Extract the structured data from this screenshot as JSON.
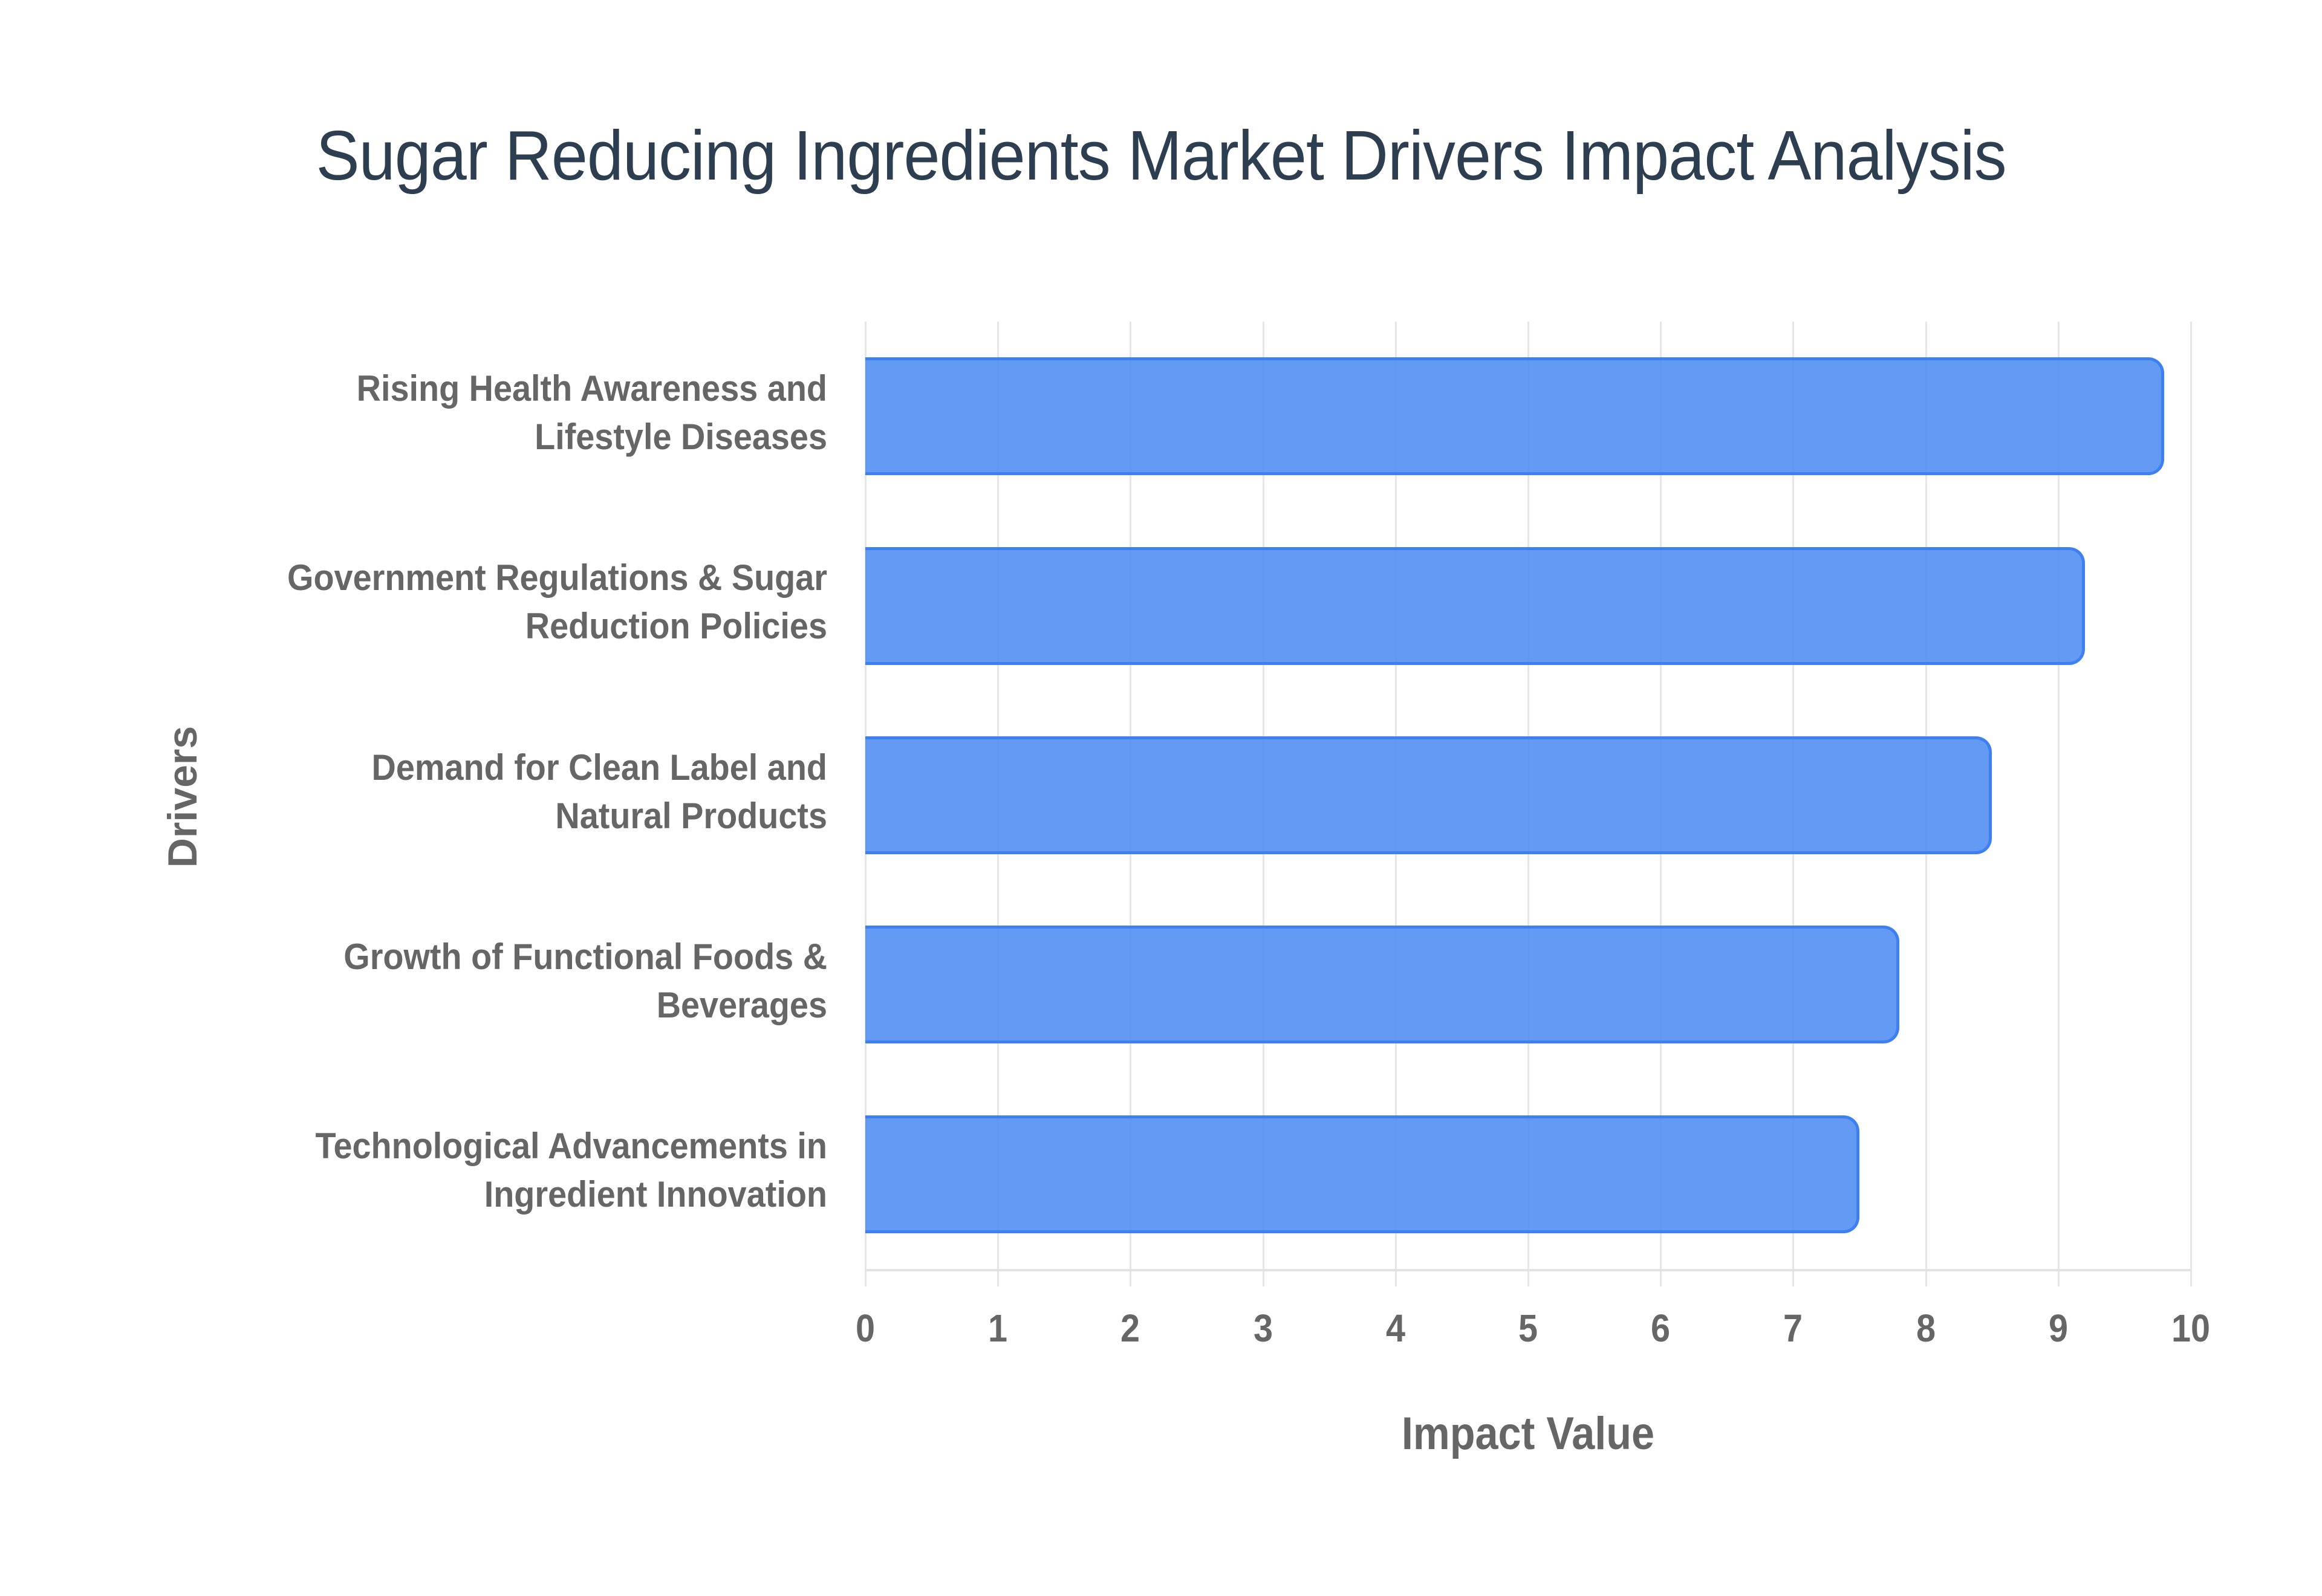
{
  "title": "Sugar Reducing Ingredients Market Drivers Impact Analysis",
  "colors": {
    "bar_fill": "#6399F5",
    "bar_border": "#3F80F0",
    "title": "#2C3E50",
    "axis_text": "#666666",
    "grid": "#E6E6E6"
  },
  "axes": {
    "x_title": "Impact Value",
    "y_title": "Drivers",
    "x_ticks": [
      "0",
      "1",
      "2",
      "3",
      "4",
      "5",
      "6",
      "7",
      "8",
      "9",
      "10"
    ]
  },
  "labels": [
    {
      "line1": "Rising Health Awareness and",
      "line2": "Lifestyle Diseases"
    },
    {
      "line1": "Government Regulations & Sugar",
      "line2": "Reduction Policies"
    },
    {
      "line1": "Demand for Clean Label and",
      "line2": "Natural Products"
    },
    {
      "line1": "Growth of Functional Foods &",
      "line2": "Beverages"
    },
    {
      "line1": "Technological Advancements in",
      "line2": "Ingredient Innovation"
    }
  ],
  "chart_data": {
    "type": "bar",
    "orientation": "horizontal",
    "title": "Sugar Reducing Ingredients Market Drivers Impact Analysis",
    "categories": [
      "Rising Health Awareness and Lifestyle Diseases",
      "Government Regulations & Sugar Reduction Policies",
      "Demand for Clean Label and Natural Products",
      "Growth of Functional Foods & Beverages",
      "Technological Advancements in Ingredient Innovation"
    ],
    "values": [
      9.8,
      9.2,
      8.5,
      7.8,
      7.5
    ],
    "xlabel": "Impact Value",
    "ylabel": "Drivers",
    "xlim": [
      0,
      10
    ],
    "x_ticks": [
      0,
      1,
      2,
      3,
      4,
      5,
      6,
      7,
      8,
      9,
      10
    ],
    "grid": true,
    "legend": "none"
  }
}
